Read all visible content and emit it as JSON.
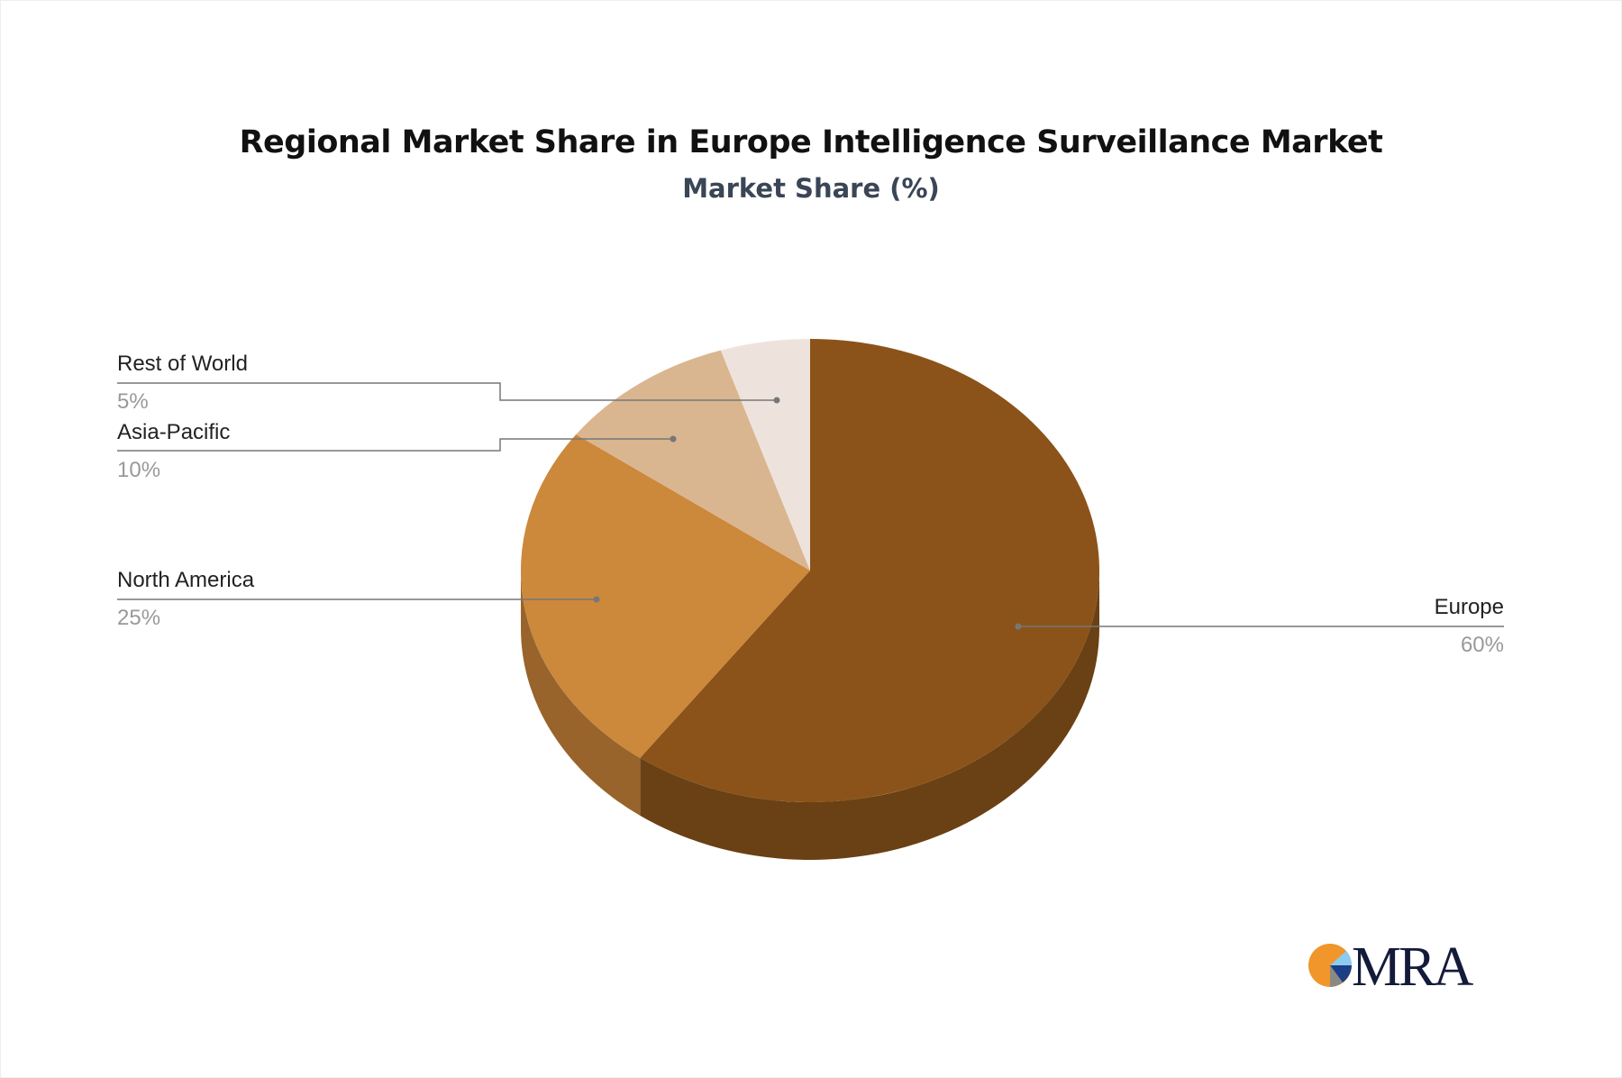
{
  "chart_data": {
    "type": "pie",
    "title": "Regional Market Share in Europe Intelligence Surveillance Market",
    "subtitle": "Market Share (%)",
    "slices": [
      {
        "label": "Europe",
        "value": 60,
        "value_label": "60%",
        "color": "#8B5319",
        "side_color": "#6A4114"
      },
      {
        "label": "North America",
        "value": 25,
        "value_label": "25%",
        "color": "#CC883B",
        "side_color": "#98642C"
      },
      {
        "label": "Asia-Pacific",
        "value": 10,
        "value_label": "10%",
        "color": "#D9B690",
        "side_color": "#A98A68"
      },
      {
        "label": "Rest of World",
        "value": 5,
        "value_label": "5%",
        "color": "#EEE3DC",
        "side_color": "#BDB2AB"
      }
    ],
    "style": "3d-pie",
    "legend": "none"
  },
  "logo": {
    "text": "MRA"
  }
}
